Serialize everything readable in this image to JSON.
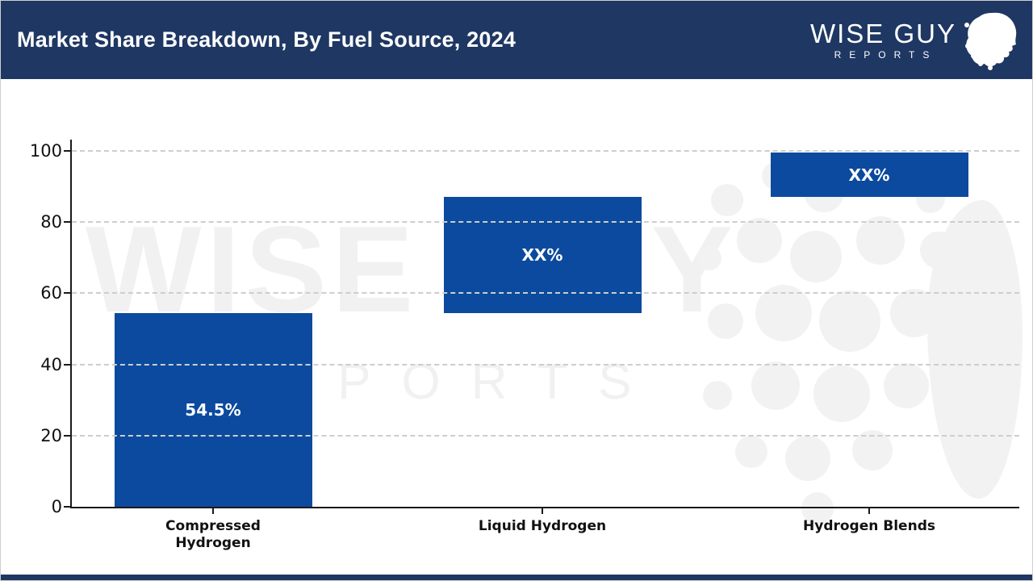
{
  "header": {
    "title": "Market Share Breakdown, By Fuel Source, 2024",
    "logo": {
      "name": "WISE GUY",
      "tagline": "REPORTS"
    }
  },
  "watermark": {
    "name": "WISE GUY",
    "tagline": "REPORTS"
  },
  "chart_data": {
    "type": "bar",
    "variant": "floating-segment-breakdown",
    "title": "Market Share Breakdown, By Fuel Source, 2024",
    "categories": [
      "Compressed\nHydrogen",
      "Liquid Hydrogen",
      "Hydrogen Blends"
    ],
    "segments": [
      {
        "category": "Compressed Hydrogen",
        "start": 0,
        "end": 54.5,
        "label": "54.5%"
      },
      {
        "category": "Liquid Hydrogen",
        "start": 54.5,
        "end": 87,
        "label": "XX%"
      },
      {
        "category": "Hydrogen Blends",
        "start": 87,
        "end": 99.5,
        "label": "XX%"
      }
    ],
    "yticks": [
      0,
      20,
      40,
      60,
      80,
      100
    ],
    "ylim": [
      0,
      103
    ],
    "xlabel": "",
    "ylabel": "",
    "grid": "dashed-horizontal-over-bars",
    "legend": "none",
    "bar_color": "#0b4a9e"
  },
  "colors": {
    "header_bg": "#1f3763",
    "footer_bg": "#1f3763",
    "bar": "#0b4a9e",
    "grid": "#cdcdcd",
    "axis": "#1a1a1a",
    "bar_label": "#ffffff",
    "watermark": "#f1f1f1"
  }
}
